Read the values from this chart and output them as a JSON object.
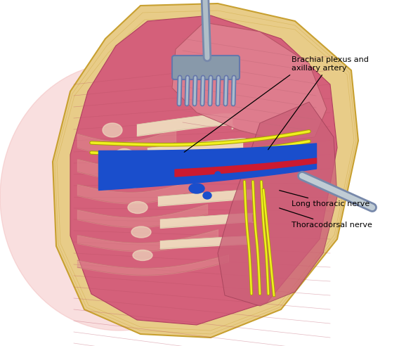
{
  "bg_color": "#ffffff",
  "outer_skin_color": "#e8cc88",
  "outer_skin_edge": "#c8a030",
  "muscle_bg": "#d4607a",
  "muscle_light": "#e07888",
  "muscle_fiber": "#c05068",
  "rib_color": "#f0dfc0",
  "rib_shadow": "#d8c8a8",
  "vein_blue": "#1a4ecc",
  "artery_red": "#cc1a30",
  "nerve_yellow": "#f0f020",
  "nerve_dark": "#a8a000",
  "retractor_body": "#8899aa",
  "retractor_light": "#aabbcc",
  "probe_color": "#9aaabb",
  "probe_light": "#c8d4dc",
  "pink_glow": "#f0b0b0",
  "ann1_text": "Brachial plexus and\naxillary artery",
  "ann2_text": "Long thoracic nerve",
  "ann3_text": "Thoracodorsal nerve"
}
